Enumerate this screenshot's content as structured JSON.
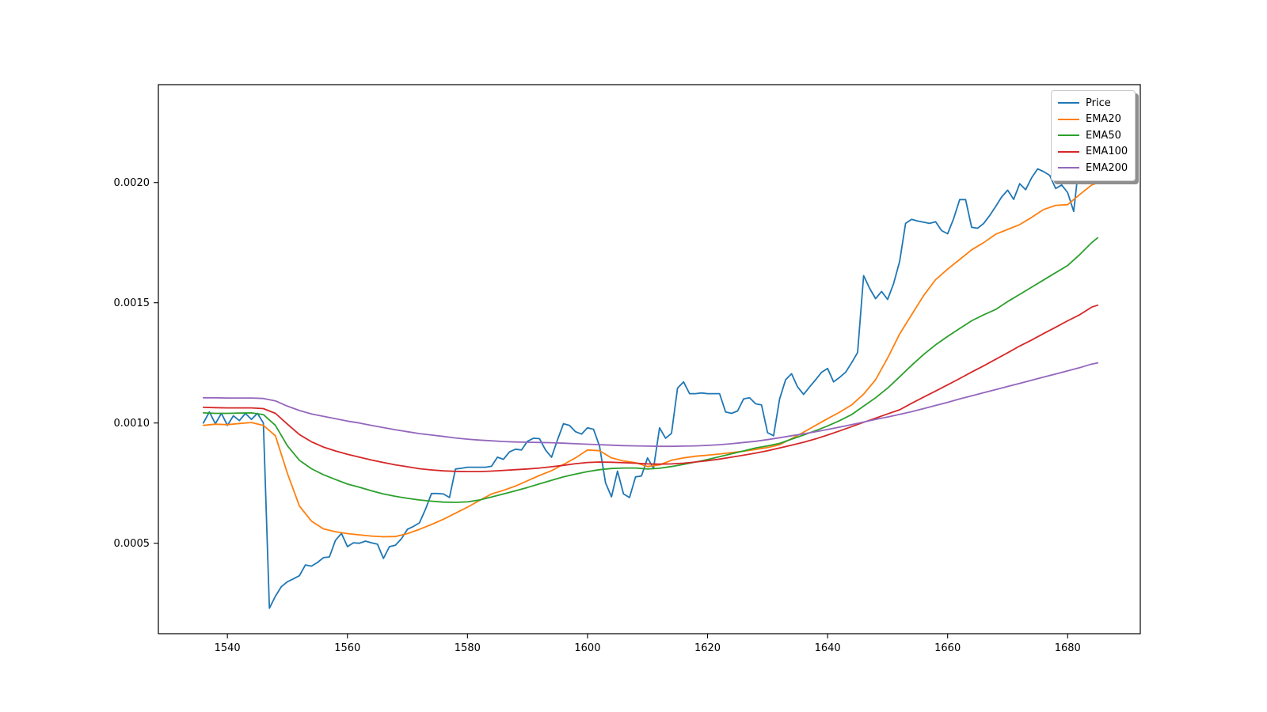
{
  "chart_data": {
    "type": "line",
    "title": "",
    "xlabel": "",
    "ylabel": "",
    "grid": false,
    "legend_position": "upper right",
    "xlim": [
      1528.5,
      1692.1
    ],
    "ylim": [
      0.000124,
      0.002407
    ],
    "xticks": [
      1540,
      1560,
      1580,
      1600,
      1620,
      1640,
      1660,
      1680
    ],
    "xtick_labels": [
      "1540",
      "1560",
      "1580",
      "1600",
      "1620",
      "1640",
      "1660",
      "1680"
    ],
    "yticks": [
      0.0005,
      0.001,
      0.0015,
      0.002
    ],
    "ytick_labels": [
      "0.0005",
      "0.0010",
      "0.0015",
      "0.0020"
    ],
    "ema_x": [
      1536,
      1538,
      1540,
      1542,
      1544,
      1546,
      1548,
      1550,
      1552,
      1554,
      1556,
      1558,
      1560,
      1562,
      1564,
      1566,
      1568,
      1570,
      1572,
      1574,
      1576,
      1578,
      1580,
      1582,
      1584,
      1586,
      1588,
      1590,
      1592,
      1594,
      1596,
      1598,
      1600,
      1602,
      1604,
      1606,
      1608,
      1610,
      1612,
      1614,
      1616,
      1618,
      1620,
      1622,
      1624,
      1626,
      1628,
      1630,
      1632,
      1634,
      1636,
      1638,
      1640,
      1642,
      1644,
      1646,
      1648,
      1650,
      1652,
      1654,
      1656,
      1658,
      1660,
      1662,
      1664,
      1666,
      1668,
      1670,
      1672,
      1674,
      1676,
      1678,
      1680,
      1682,
      1684,
      1685
    ],
    "series": [
      {
        "name": "Price",
        "color": "#1f77b4",
        "x": [
          1536,
          1537,
          1538,
          1539,
          1540,
          1541,
          1542,
          1543,
          1544,
          1545,
          1546,
          1547,
          1548,
          1549,
          1550,
          1551,
          1552,
          1553,
          1554,
          1555,
          1556,
          1557,
          1558,
          1559,
          1560,
          1561,
          1562,
          1563,
          1564,
          1565,
          1566,
          1567,
          1568,
          1569,
          1570,
          1571,
          1572,
          1573,
          1574,
          1575,
          1576,
          1577,
          1578,
          1579,
          1580,
          1581,
          1582,
          1583,
          1584,
          1585,
          1586,
          1587,
          1588,
          1589,
          1590,
          1591,
          1592,
          1593,
          1594,
          1595,
          1596,
          1597,
          1598,
          1599,
          1600,
          1601,
          1602,
          1603,
          1604,
          1605,
          1606,
          1607,
          1608,
          1609,
          1610,
          1611,
          1612,
          1613,
          1614,
          1615,
          1616,
          1617,
          1618,
          1619,
          1620,
          1621,
          1622,
          1623,
          1624,
          1625,
          1626,
          1627,
          1628,
          1629,
          1630,
          1631,
          1632,
          1633,
          1634,
          1635,
          1636,
          1637,
          1638,
          1639,
          1640,
          1641,
          1642,
          1643,
          1644,
          1645,
          1646,
          1647,
          1648,
          1649,
          1650,
          1651,
          1652,
          1653,
          1654,
          1655,
          1656,
          1657,
          1658,
          1659,
          1660,
          1661,
          1662,
          1663,
          1664,
          1665,
          1666,
          1667,
          1668,
          1669,
          1670,
          1671,
          1672,
          1673,
          1674,
          1675,
          1676,
          1677,
          1678,
          1679,
          1680,
          1681,
          1682,
          1683,
          1684,
          1685
        ],
        "y": [
          0.001,
          0.001046,
          0.000997,
          0.00104,
          0.00099,
          0.00103,
          0.00101,
          0.00104,
          0.001015,
          0.00104,
          0.001,
          0.00023,
          0.00028,
          0.00032,
          0.00034,
          0.000352,
          0.000365,
          0.00041,
          0.000405,
          0.00042,
          0.00044,
          0.000443,
          0.000512,
          0.000541,
          0.000486,
          0.000502,
          0.0005,
          0.000509,
          0.000502,
          0.000496,
          0.000437,
          0.000486,
          0.000492,
          0.000519,
          0.000558,
          0.00057,
          0.000585,
          0.000641,
          0.000707,
          0.000707,
          0.000705,
          0.00069,
          0.000809,
          0.000812,
          0.000816,
          0.000816,
          0.000816,
          0.000816,
          0.00082,
          0.000858,
          0.000849,
          0.00088,
          0.000891,
          0.000888,
          0.000924,
          0.000937,
          0.000935,
          0.000888,
          0.000858,
          0.00093,
          0.000997,
          0.00099,
          0.000964,
          0.000954,
          0.00098,
          0.000974,
          0.000904,
          0.000751,
          0.000693,
          0.0008,
          0.000705,
          0.00069,
          0.000776,
          0.00078,
          0.000855,
          0.000812,
          0.00098,
          0.000937,
          0.000957,
          0.001145,
          0.001171,
          0.001122,
          0.001122,
          0.001125,
          0.001122,
          0.001122,
          0.001122,
          0.001046,
          0.00104,
          0.00105,
          0.0011,
          0.001105,
          0.00108,
          0.001075,
          0.00096,
          0.000947,
          0.0011,
          0.00118,
          0.001205,
          0.00115,
          0.001119,
          0.00115,
          0.00118,
          0.001211,
          0.001227,
          0.001171,
          0.00119,
          0.001211,
          0.00125,
          0.001293,
          0.001613,
          0.00156,
          0.001517,
          0.001547,
          0.001514,
          0.00158,
          0.001672,
          0.00183,
          0.001847,
          0.00184,
          0.001835,
          0.00183,
          0.001837,
          0.0018,
          0.001787,
          0.00185,
          0.001929,
          0.001929,
          0.001814,
          0.00181,
          0.00183,
          0.001863,
          0.0019,
          0.00194,
          0.001968,
          0.00193,
          0.001995,
          0.00197,
          0.00202,
          0.002057,
          0.002045,
          0.00203,
          0.001975,
          0.00199,
          0.001958,
          0.00188,
          0.0021,
          0.0022,
          0.00229,
          0.0023
        ]
      },
      {
        "name": "EMA20",
        "color": "#ff7f0e",
        "use_ema_x": true,
        "y": [
          0.00099,
          0.000995,
          0.000993,
          0.000998,
          0.001002,
          0.00099,
          0.000947,
          0.00079,
          0.000655,
          0.000592,
          0.00056,
          0.000548,
          0.00054,
          0.000535,
          0.00053,
          0.000527,
          0.000528,
          0.00054,
          0.000558,
          0.000578,
          0.0006,
          0.000625,
          0.00065,
          0.000678,
          0.000705,
          0.00072,
          0.000738,
          0.00076,
          0.000782,
          0.000802,
          0.000828,
          0.000855,
          0.000888,
          0.000885,
          0.000855,
          0.000842,
          0.000835,
          0.000819,
          0.000826,
          0.000845,
          0.000855,
          0.000862,
          0.000866,
          0.000871,
          0.000877,
          0.000883,
          0.00089,
          0.000898,
          0.00091,
          0.000935,
          0.000962,
          0.00099,
          0.001018,
          0.001045,
          0.001075,
          0.00112,
          0.00118,
          0.00127,
          0.00137,
          0.00145,
          0.00153,
          0.001596,
          0.00164,
          0.00168,
          0.00172,
          0.00175,
          0.001785,
          0.001805,
          0.001825,
          0.001855,
          0.001888,
          0.001905,
          0.001908,
          0.00195,
          0.00199,
          0.001998
        ]
      },
      {
        "name": "EMA50",
        "color": "#2ca02c",
        "use_ema_x": true,
        "y": [
          0.001042,
          0.00104,
          0.00104,
          0.001041,
          0.001042,
          0.001035,
          0.00099,
          0.000905,
          0.000845,
          0.00081,
          0.000785,
          0.000765,
          0.000746,
          0.000733,
          0.000718,
          0.000705,
          0.000695,
          0.000687,
          0.00068,
          0.000675,
          0.000671,
          0.00067,
          0.000672,
          0.00068,
          0.000692,
          0.000705,
          0.000718,
          0.000732,
          0.000747,
          0.000762,
          0.000776,
          0.000788,
          0.000798,
          0.000806,
          0.000811,
          0.000813,
          0.000813,
          0.000809,
          0.000812,
          0.000819,
          0.000828,
          0.000838,
          0.000848,
          0.00086,
          0.000872,
          0.000884,
          0.000896,
          0.000905,
          0.000915,
          0.000933,
          0.00095,
          0.000968,
          0.000988,
          0.00101,
          0.001035,
          0.00107,
          0.001105,
          0.001145,
          0.001192,
          0.00124,
          0.001285,
          0.001325,
          0.00136,
          0.001393,
          0.001425,
          0.00145,
          0.001472,
          0.001505,
          0.001535,
          0.001565,
          0.001595,
          0.001625,
          0.001655,
          0.0017,
          0.00175,
          0.00177
        ]
      },
      {
        "name": "EMA100",
        "color": "#d62728",
        "use_ema_x": true,
        "y": [
          0.001065,
          0.001064,
          0.001063,
          0.001063,
          0.001063,
          0.00106,
          0.00104,
          0.000995,
          0.000952,
          0.000922,
          0.0009,
          0.000884,
          0.00087,
          0.000858,
          0.000846,
          0.000836,
          0.000826,
          0.000818,
          0.00081,
          0.000805,
          0.000801,
          0.000799,
          0.000798,
          0.000798,
          0.0008,
          0.000803,
          0.000806,
          0.000809,
          0.000813,
          0.000818,
          0.000824,
          0.000831,
          0.000836,
          0.000838,
          0.000837,
          0.000835,
          0.000833,
          0.00083,
          0.000829,
          0.00083,
          0.000833,
          0.000838,
          0.000843,
          0.00085,
          0.000858,
          0.000866,
          0.000875,
          0.000885,
          0.000896,
          0.000908,
          0.00092,
          0.000934,
          0.00095,
          0.000967,
          0.000985,
          0.001003,
          0.00102,
          0.001038,
          0.001055,
          0.001082,
          0.001108,
          0.001133,
          0.001159,
          0.001185,
          0.001212,
          0.001238,
          0.001265,
          0.001292,
          0.00132,
          0.001345,
          0.001372,
          0.001398,
          0.001425,
          0.00145,
          0.001482,
          0.00149
        ]
      },
      {
        "name": "EMA200",
        "color": "#9467bd",
        "use_ema_x": true,
        "y": [
          0.001105,
          0.001105,
          0.001104,
          0.001104,
          0.001104,
          0.001102,
          0.001092,
          0.00107,
          0.001052,
          0.001038,
          0.001028,
          0.001018,
          0.001008,
          0.001,
          0.00099,
          0.000981,
          0.000972,
          0.000964,
          0.000956,
          0.00095,
          0.000944,
          0.000938,
          0.000933,
          0.000929,
          0.000926,
          0.000923,
          0.000921,
          0.00092,
          0.000919,
          0.000918,
          0.000916,
          0.000914,
          0.000912,
          0.00091,
          0.000908,
          0.000906,
          0.000905,
          0.000904,
          0.000903,
          0.000903,
          0.000904,
          0.000905,
          0.000907,
          0.00091,
          0.000914,
          0.000919,
          0.000924,
          0.000931,
          0.000939,
          0.000947,
          0.000955,
          0.000964,
          0.000973,
          0.000983,
          0.000993,
          0.001004,
          0.001015,
          0.001025,
          0.001036,
          0.001047,
          0.00106,
          0.001073,
          0.001086,
          0.0011,
          0.001113,
          0.001126,
          0.001139,
          0.001152,
          0.001165,
          0.001178,
          0.001191,
          0.001204,
          0.001217,
          0.00123,
          0.001245,
          0.00125
        ]
      }
    ],
    "legend": {
      "labels": [
        "Price",
        "EMA20",
        "EMA50",
        "EMA100",
        "EMA200"
      ]
    }
  }
}
